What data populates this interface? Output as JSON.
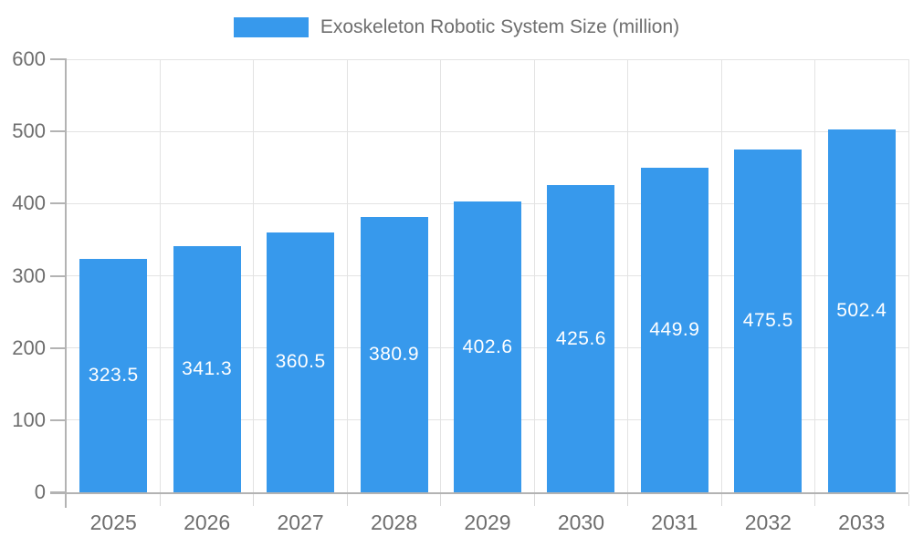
{
  "chart_data": {
    "type": "bar",
    "title": "",
    "legend_label": "Exoskeleton Robotic System Size (million)",
    "legend_position": "top",
    "categories": [
      "2025",
      "2026",
      "2027",
      "2028",
      "2029",
      "2030",
      "2031",
      "2032",
      "2033"
    ],
    "values": [
      323.5,
      341.3,
      360.5,
      380.9,
      402.6,
      425.6,
      449.9,
      475.5,
      502.4
    ],
    "series": [
      {
        "name": "Exoskeleton Robotic System Size (million)",
        "values": [
          323.5,
          341.3,
          360.5,
          380.9,
          402.6,
          425.6,
          449.9,
          475.5,
          502.4
        ]
      }
    ],
    "xlabel": "",
    "ylabel": "",
    "ylim": [
      0,
      600
    ],
    "yticks": [
      0,
      100,
      200,
      300,
      400,
      500,
      600
    ],
    "grid": true,
    "bar_color": "#3799EC",
    "bar_label_color": "#ffffff",
    "axis_text_color": "#6e6e6e",
    "grid_color": "#e3e3e3",
    "axis_line_color": "#b3b3b3",
    "minor_tick_color": "#d9d9d9",
    "background_color": "#ffffff"
  }
}
